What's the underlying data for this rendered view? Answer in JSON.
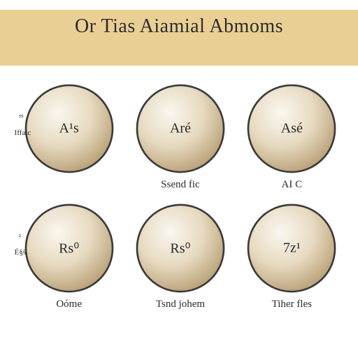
{
  "title": "Or Tias Aiamial Abmoms",
  "header_band_color": "#eacf94",
  "sphere": {
    "fill_light": "#faf7f0",
    "fill_mid": "#e6d9bf",
    "fill_dark": "#bba37a",
    "stroke": "#3a3a3a",
    "stroke_width": 2
  },
  "label_color": "#2b2b2b",
  "cells": [
    {
      "inside": "A¹s",
      "caption": "",
      "note_top": "³⁵",
      "note_bot": "Iffaic"
    },
    {
      "inside": "Aré",
      "caption": "Ssend fic",
      "note_top": "",
      "note_bot": ""
    },
    {
      "inside": "Asé",
      "caption": "AI C",
      "note_top": "",
      "note_bot": ""
    },
    {
      "inside": "Rs⁰",
      "caption": "Oóme",
      "note_top": "²",
      "note_bot": "É§ŝ"
    },
    {
      "inside": "Rs⁰",
      "caption": "Tsnd johem",
      "note_top": "",
      "note_bot": ""
    },
    {
      "inside": "7z¹",
      "caption": "Tiher fles",
      "note_top": "",
      "note_bot": ""
    }
  ]
}
